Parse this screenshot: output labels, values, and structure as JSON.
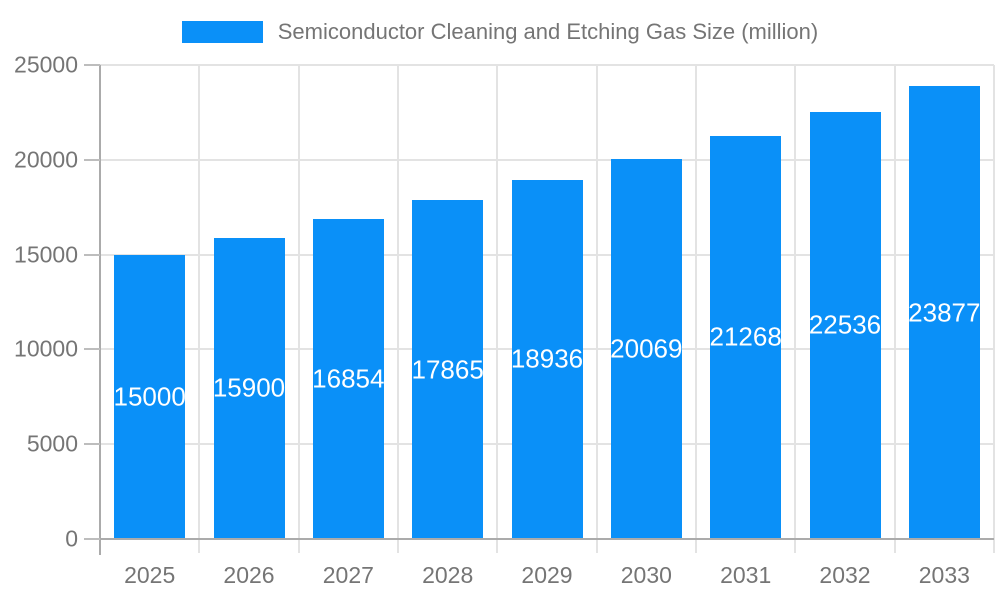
{
  "chart_data": {
    "type": "bar",
    "title": "Semiconductor Cleaning and Etching Gas Size (million)",
    "categories": [
      "2025",
      "2026",
      "2027",
      "2028",
      "2029",
      "2030",
      "2031",
      "2032",
      "2033"
    ],
    "values": [
      15000,
      15900,
      16854,
      17865,
      18936,
      20069,
      21268,
      22536,
      23877
    ],
    "series": [
      {
        "name": "Semiconductor Cleaning and Etching Gas Size (million)",
        "values": [
          15000,
          15900,
          16854,
          17865,
          18936,
          20069,
          21268,
          22536,
          23877
        ]
      }
    ],
    "xlabel": "",
    "ylabel": "",
    "ylim": [
      0,
      25000
    ],
    "yticks": [
      0,
      5000,
      10000,
      15000,
      20000,
      25000
    ],
    "grid": true,
    "legend_position": "top-center",
    "bar_labels_shown": true,
    "colors": {
      "bar": "#0a90f8",
      "bar_label": "#ffffff",
      "axis_text": "#757575",
      "title_text": "#757575",
      "gridline": "#e3e3e3",
      "axis_line": "#ababab",
      "tick_mark": "#bdbdbd",
      "background": "#ffffff"
    }
  }
}
